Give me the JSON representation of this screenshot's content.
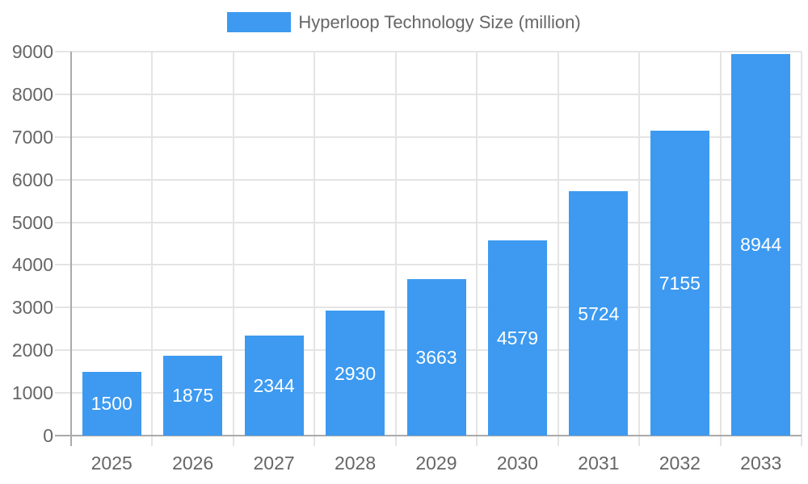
{
  "legend": {
    "label": "Hyperloop Technology Size (million)"
  },
  "chart_data": {
    "type": "bar",
    "title": "Hyperloop Technology Size (million)",
    "categories": [
      "2025",
      "2026",
      "2027",
      "2028",
      "2029",
      "2030",
      "2031",
      "2032",
      "2033"
    ],
    "values": [
      1500,
      1875,
      2344,
      2930,
      3663,
      4579,
      5724,
      7155,
      8944
    ],
    "xlabel": "",
    "ylabel": "",
    "ylim": [
      0,
      9000
    ],
    "yticks": [
      0,
      1000,
      2000,
      3000,
      4000,
      5000,
      6000,
      7000,
      8000,
      9000
    ],
    "grid": true,
    "legend_position": "top-center",
    "show_bar_labels": true,
    "colors": {
      "bar": "#3D9AF0",
      "grid": "#e4e4e4",
      "axis": "#aaaaaa",
      "tick_text": "#666666",
      "legend_text": "#666666",
      "bar_label_text": "#ffffff",
      "background": "#ffffff"
    }
  }
}
